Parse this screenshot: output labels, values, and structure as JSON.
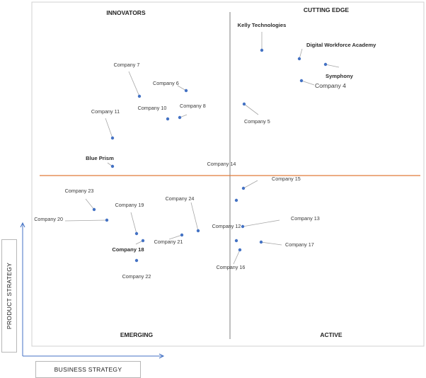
{
  "chart_data": {
    "type": "scatter",
    "quadrants": {
      "top_left": "INNOVATORS",
      "top_right": "CUTTING EDGE",
      "bottom_left": "EMERGING",
      "bottom_right": "ACTIVE"
    },
    "xlabel": "BUSINESS STRATEGY",
    "ylabel": "PRODUCT STRATEGY",
    "colors": {
      "point": "#4472c4",
      "horizontal_divider": "#e07b39",
      "vertical_divider": "#7f7f7f",
      "leader": "#a6a6a6"
    },
    "points": [
      {
        "name": "Kelly Technologies",
        "x": 4.45,
        "y": 8.77,
        "highlight": true
      },
      {
        "name": "Digital Workforce Academy",
        "x": 4.98,
        "y": 8.65,
        "highlight": true
      },
      {
        "name": "Symphony",
        "x": 5.35,
        "y": 8.57,
        "highlight": true
      },
      {
        "name": "Company 4",
        "x": 5.01,
        "y": 8.34,
        "highlight": false
      },
      {
        "name": "Company 5",
        "x": 4.2,
        "y": 8.01,
        "highlight": false
      },
      {
        "name": "Company 6",
        "x": 3.38,
        "y": 8.2,
        "highlight": false
      },
      {
        "name": "Company 7",
        "x": 2.72,
        "y": 8.12,
        "highlight": false
      },
      {
        "name": "Company 8",
        "x": 3.29,
        "y": 7.82,
        "highlight": false
      },
      {
        "name": "Company 10",
        "x": 3.12,
        "y": 7.8,
        "highlight": false
      },
      {
        "name": "Company 11",
        "x": 2.34,
        "y": 7.53,
        "highlight": false
      },
      {
        "name": "Blue Prism",
        "x": 2.34,
        "y": 7.13,
        "highlight": true
      },
      {
        "name": "Company 23",
        "x": 2.08,
        "y": 6.52,
        "highlight": false
      },
      {
        "name": "Company 20",
        "x": 2.26,
        "y": 6.37,
        "highlight": false
      },
      {
        "name": "Company 19",
        "x": 2.68,
        "y": 6.18,
        "highlight": false
      },
      {
        "name": "Company 18",
        "x": 2.77,
        "y": 6.08,
        "highlight": true
      },
      {
        "name": "Company 21",
        "x": 3.32,
        "y": 6.16,
        "highlight": false
      },
      {
        "name": "Company 24",
        "x": 3.55,
        "y": 6.22,
        "highlight": false
      },
      {
        "name": "Company 22",
        "x": 2.68,
        "y": 5.8,
        "highlight": false
      },
      {
        "name": "Company 14",
        "x": 4.09,
        "y": 6.65,
        "highlight": false
      },
      {
        "name": "Company 15",
        "x": 4.19,
        "y": 6.82,
        "highlight": false
      },
      {
        "name": "Company 12",
        "x": 4.09,
        "y": 6.08,
        "highlight": false
      },
      {
        "name": "Company 13",
        "x": 4.18,
        "y": 6.28,
        "highlight": false
      },
      {
        "name": "Company 17",
        "x": 4.44,
        "y": 6.06,
        "highlight": false
      },
      {
        "name": "Company 16",
        "x": 4.14,
        "y": 5.95,
        "highlight": false
      }
    ]
  }
}
